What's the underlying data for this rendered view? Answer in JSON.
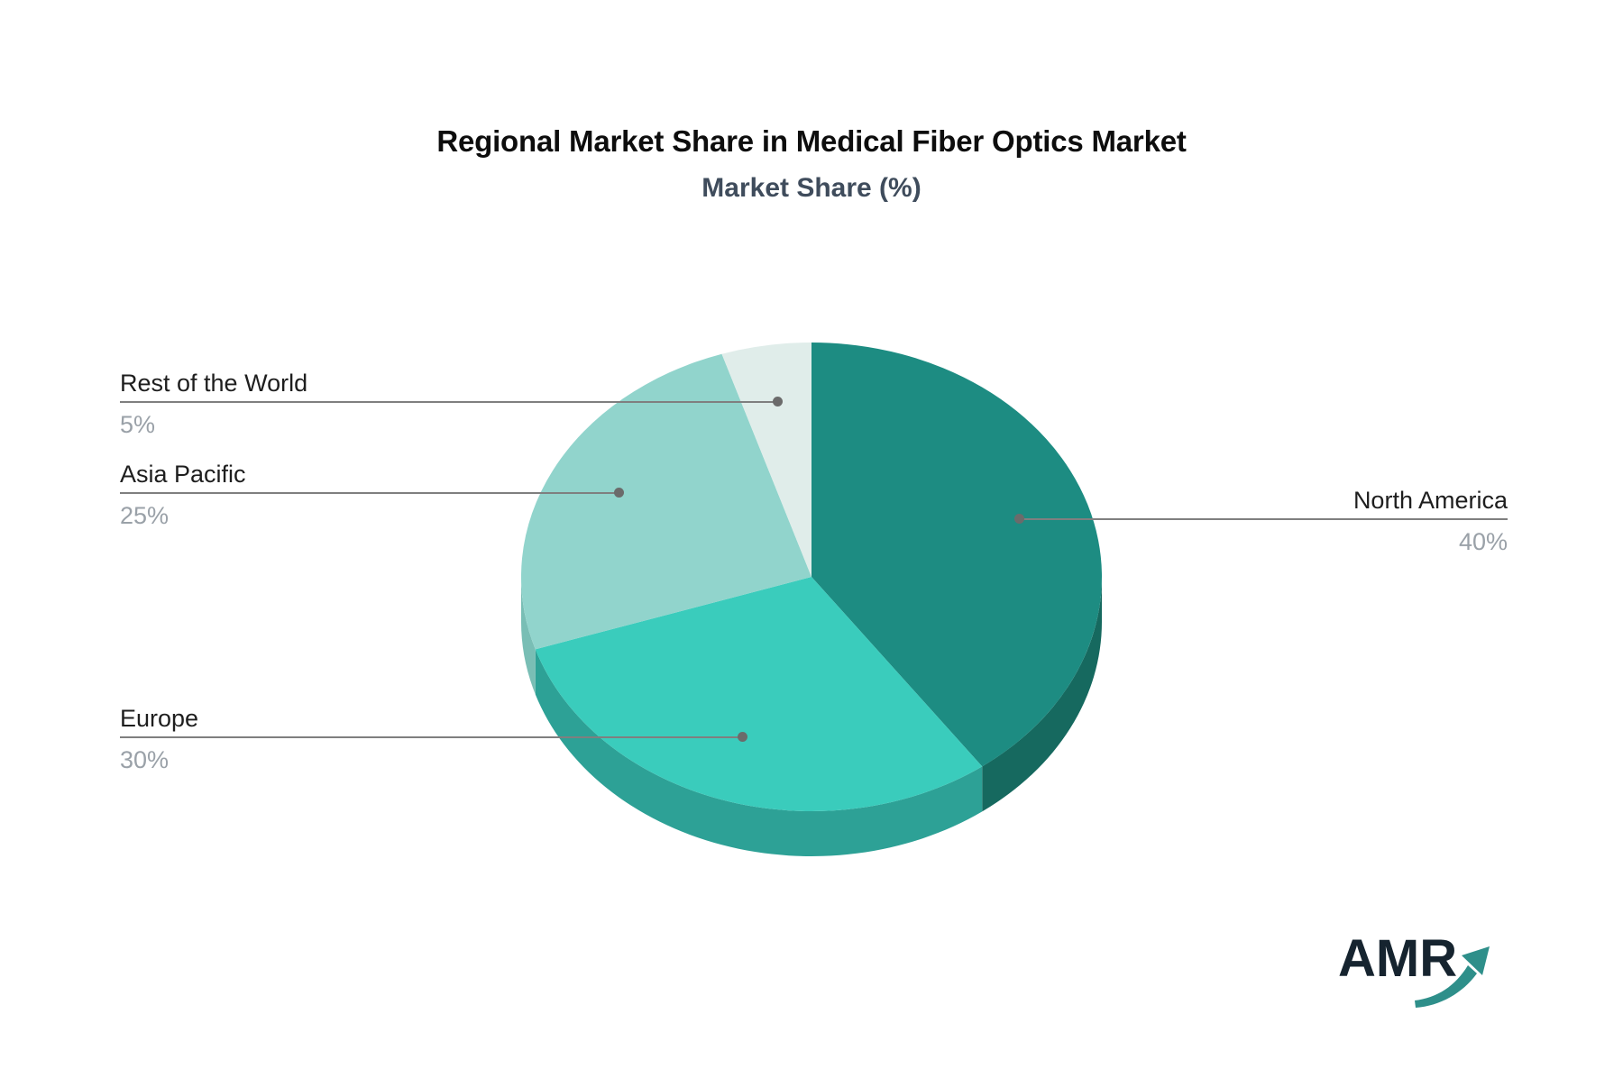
{
  "chart_data": {
    "type": "pie",
    "style": "3d",
    "title": "Regional Market Share in Medical Fiber Optics Market",
    "subtitle": "Market Share (%)",
    "unit": "%",
    "start_angle_deg": 0,
    "direction": "clockwise",
    "legend_position": "callout-labels",
    "slices": [
      {
        "label": "North America",
        "value": 40,
        "display": "40%",
        "color": "#1d8c82",
        "side_color": "#16695f"
      },
      {
        "label": "Europe",
        "value": 30,
        "display": "30%",
        "color": "#3accbc",
        "side_color": "#2da196"
      },
      {
        "label": "Asia Pacific",
        "value": 25,
        "display": "25%",
        "color": "#91d4cc",
        "side_color": "#79beb5"
      },
      {
        "label": "Rest of the World",
        "value": 5,
        "display": "5%",
        "color": "#e0edea",
        "side_color": "#c2d8d4"
      }
    ]
  },
  "logo": {
    "text": "AMR"
  },
  "colors": {
    "title_text": "#0d0d0d",
    "subtitle_text": "#3f4c5c",
    "label_text": "#1e1e1e",
    "pct_text": "#9aa1a8",
    "leader_line": "#7f7f7f",
    "leader_dot": "#6b6b6b",
    "logo_text": "#16242f",
    "logo_arrow": "#2e8f8a",
    "background": "#ffffff"
  }
}
